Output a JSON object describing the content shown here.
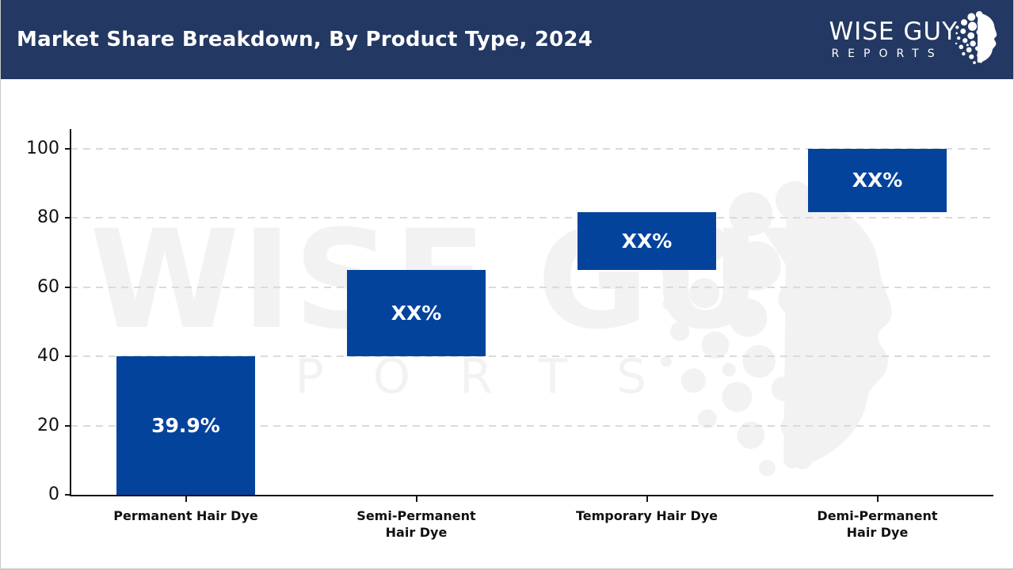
{
  "header": {
    "title": "Market Share Breakdown, By Product Type, 2024",
    "logo": {
      "brand_line1": "WISE GUY",
      "brand_line2": "REPORTS"
    }
  },
  "watermark": {
    "line1": "WISE GUY",
    "line2": "REPORTS"
  },
  "colors": {
    "header_bg": "#233862",
    "bar": "#04439C",
    "bar_label": "#FFFFFF",
    "grid": "#DADADA",
    "axis": "#151515",
    "watermark": "#F2F2F2",
    "frame_border": "#C9C9C9"
  },
  "chart_data": {
    "type": "bar",
    "subtype": "waterfall",
    "title": "Market Share Breakdown, By Product Type, 2024",
    "categories": [
      [
        "Permanent Hair Dye"
      ],
      [
        "Semi-Permanent",
        "Hair Dye"
      ],
      [
        "Temporary Hair Dye"
      ],
      [
        "Demi-Permanent",
        "Hair Dye"
      ]
    ],
    "bars": [
      {
        "start": 0,
        "end": 39.9,
        "label": "39.9%"
      },
      {
        "start": 39.9,
        "end": 64.9,
        "label": "XX%"
      },
      {
        "start": 64.9,
        "end": 81.7,
        "label": "XX%"
      },
      {
        "start": 81.7,
        "end": 100,
        "label": "XX%"
      }
    ],
    "ylim": [
      0,
      100
    ],
    "yticks": [
      0,
      20,
      40,
      60,
      80,
      100
    ],
    "xlabel": "",
    "ylabel": "",
    "grid": "horizontal-dashed",
    "legend": "none"
  }
}
